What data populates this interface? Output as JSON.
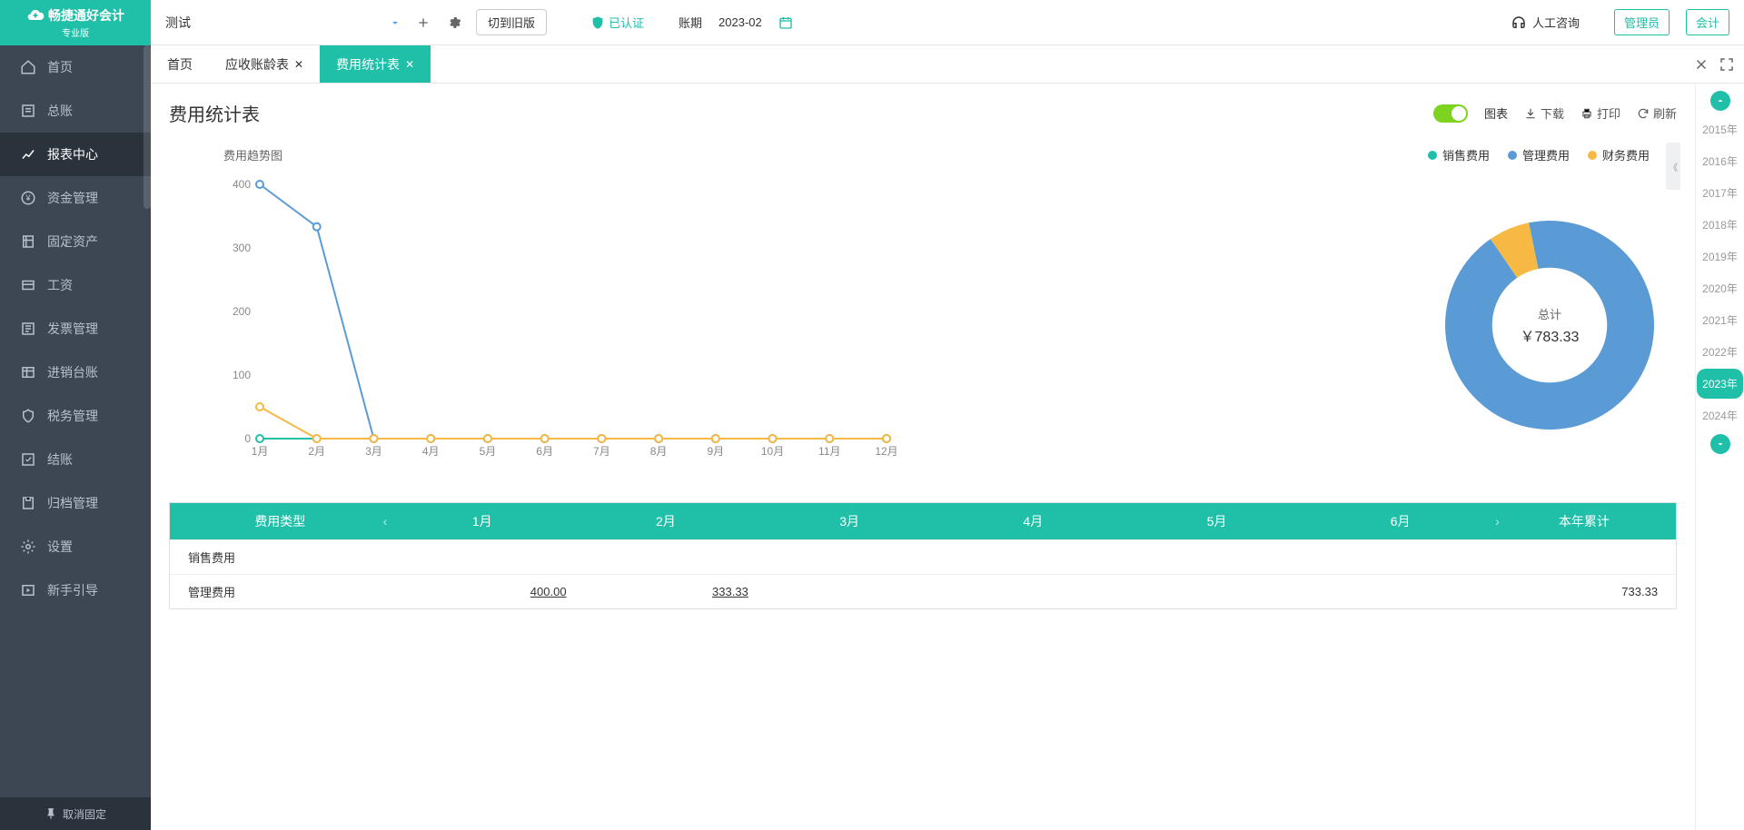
{
  "brand": {
    "name": "畅捷通好会计",
    "edition": "专业版"
  },
  "sidebar": {
    "items": [
      {
        "label": "首页"
      },
      {
        "label": "总账"
      },
      {
        "label": "报表中心"
      },
      {
        "label": "资金管理"
      },
      {
        "label": "固定资产"
      },
      {
        "label": "工资"
      },
      {
        "label": "发票管理"
      },
      {
        "label": "进销台账"
      },
      {
        "label": "税务管理"
      },
      {
        "label": "结账"
      },
      {
        "label": "归档管理"
      },
      {
        "label": "设置"
      },
      {
        "label": "新手引导"
      }
    ],
    "footer": "取消固定"
  },
  "header": {
    "company": "测试",
    "old_version": "切到旧版",
    "verified": "已认证",
    "period_label": "账期",
    "period_value": "2023-02",
    "consult": "人工咨询",
    "role_admin": "管理员",
    "role_acc": "会计"
  },
  "tabs": [
    {
      "label": "首页",
      "closable": false,
      "active": false
    },
    {
      "label": "应收账龄表",
      "closable": true,
      "active": false
    },
    {
      "label": "费用统计表",
      "closable": true,
      "active": true
    }
  ],
  "page": {
    "title": "费用统计表",
    "chart_label": "图表",
    "download": "下载",
    "print": "打印",
    "refresh": "刷新"
  },
  "trend_chart": {
    "title": "费用趋势图",
    "type": "line",
    "categories": [
      "1月",
      "2月",
      "3月",
      "4月",
      "5月",
      "6月",
      "7月",
      "8月",
      "9月",
      "10月",
      "11月",
      "12月"
    ],
    "ylim": [
      0,
      400
    ],
    "ytick_step": 100,
    "yticks": [
      "0",
      "100",
      "200",
      "300",
      "400"
    ],
    "grid_color": "#eeeeee",
    "axis_color": "#cccccc",
    "label_color": "#888888",
    "label_fontsize": 12,
    "series": [
      {
        "name": "销售费用",
        "color": "#1fbfa8",
        "marker": "circle",
        "values": [
          0,
          0,
          0,
          0,
          0,
          0,
          0,
          0,
          0,
          0,
          0,
          0
        ]
      },
      {
        "name": "管理费用",
        "color": "#5b9bd5",
        "marker": "circle",
        "values": [
          400,
          333.33,
          0,
          0,
          0,
          0,
          0,
          0,
          0,
          0,
          0,
          0
        ]
      },
      {
        "name": "财务费用",
        "color": "#f5b944",
        "marker": "circle",
        "values": [
          50,
          0,
          0,
          0,
          0,
          0,
          0,
          0,
          0,
          0,
          0,
          0
        ]
      }
    ],
    "line_width": 2,
    "marker_size": 4
  },
  "donut": {
    "type": "donut",
    "center_label": "总计",
    "center_value": "￥783.33",
    "inner_ratio": 0.55,
    "slices": [
      {
        "name": "管理费用",
        "value": 733.33,
        "color": "#5b9bd5"
      },
      {
        "name": "财务费用",
        "value": 50,
        "color": "#f5b944"
      }
    ],
    "background_color": "#ffffff"
  },
  "legend": [
    {
      "label": "销售费用",
      "color": "#1fbfa8"
    },
    {
      "label": "管理费用",
      "color": "#5b9bd5"
    },
    {
      "label": "财务费用",
      "color": "#f5b944"
    }
  ],
  "table": {
    "header_bg": "#1fbfa8",
    "columns": [
      "费用类型",
      "1月",
      "2月",
      "3月",
      "4月",
      "5月",
      "6月",
      "本年累计"
    ],
    "rows": [
      {
        "type": "销售费用",
        "m1": "",
        "m2": "",
        "m3": "",
        "m4": "",
        "m5": "",
        "m6": "",
        "total": ""
      },
      {
        "type": "管理费用",
        "m1": "400.00",
        "m2": "333.33",
        "m3": "",
        "m4": "",
        "m5": "",
        "m6": "",
        "total": "733.33"
      }
    ]
  },
  "year_rail": {
    "years": [
      "2015年",
      "2016年",
      "2017年",
      "2018年",
      "2019年",
      "2020年",
      "2021年",
      "2022年",
      "2023年",
      "2024年"
    ],
    "active": "2023年"
  }
}
